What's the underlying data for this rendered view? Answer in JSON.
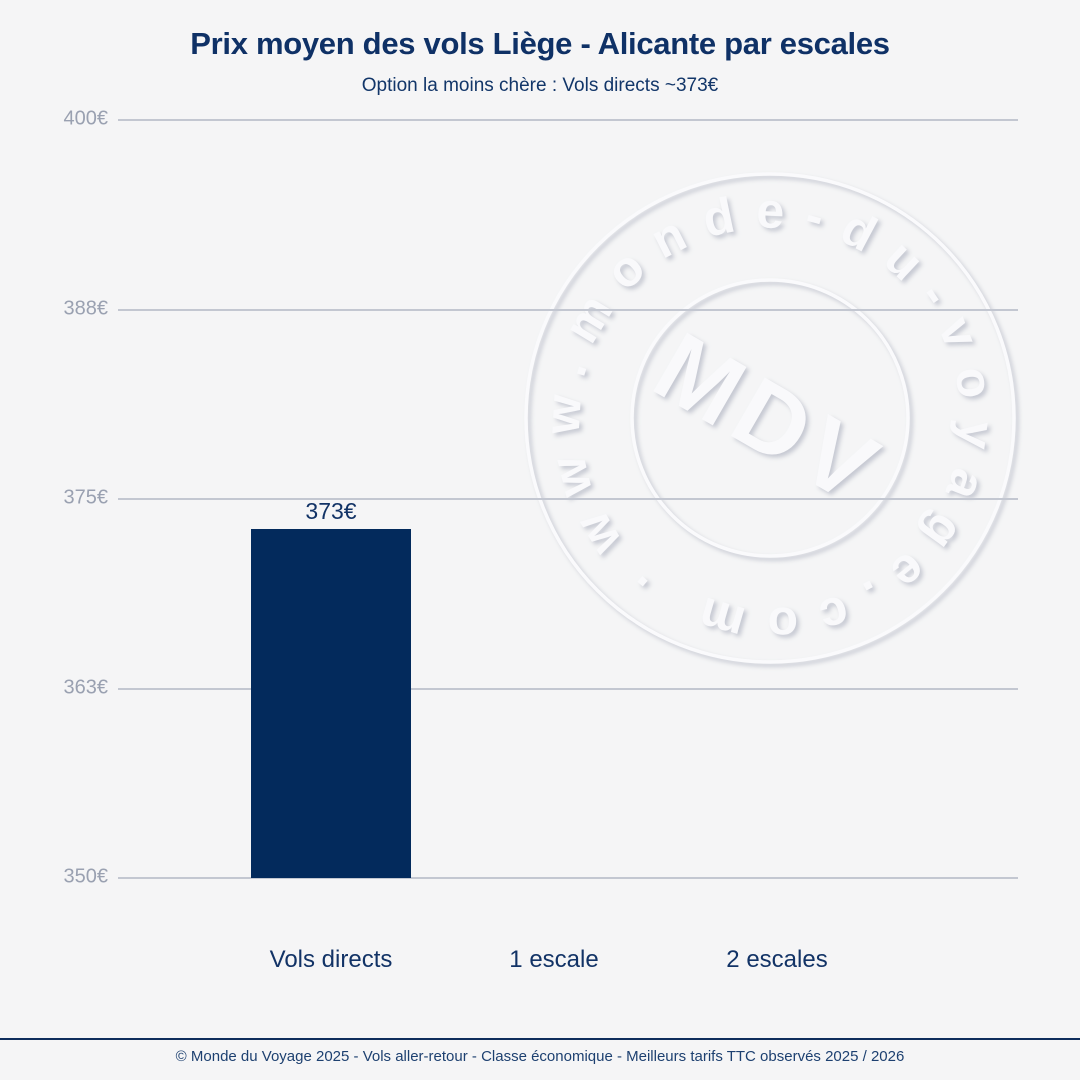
{
  "page": {
    "background_color": "#f5f5f6",
    "accent_color": "#0f3166",
    "gridline_color": "#c3c7d1",
    "axis_label_color": "#9aa1b1"
  },
  "chart_data": {
    "type": "bar",
    "title": "Prix moyen des vols Liège - Alicante par escales",
    "subtitle": "Option la moins chère : Vols directs ~373€",
    "categories": [
      "Vols directs",
      "1 escale",
      "2 escales"
    ],
    "values": [
      373,
      null,
      null
    ],
    "bar_labels": [
      "373€",
      null,
      null
    ],
    "bar_color": "#032a5c",
    "ylim": [
      350,
      400
    ],
    "yticks": [
      {
        "value": 400,
        "label": "400€"
      },
      {
        "value": 387.5,
        "label": "388€"
      },
      {
        "value": 375,
        "label": "375€"
      },
      {
        "value": 362.5,
        "label": "363€"
      },
      {
        "value": 350,
        "label": "350€"
      }
    ],
    "grid": true,
    "legend": false,
    "xlabel": "",
    "ylabel": ""
  },
  "watermark": {
    "ring_text": "www.monde-du-voyage.com ·",
    "center_text": "MDV"
  },
  "footer": {
    "text": "© Monde du Voyage 2025 - Vols aller-retour - Classe économique - Meilleurs tarifs TTC observés 2025 / 2026"
  }
}
